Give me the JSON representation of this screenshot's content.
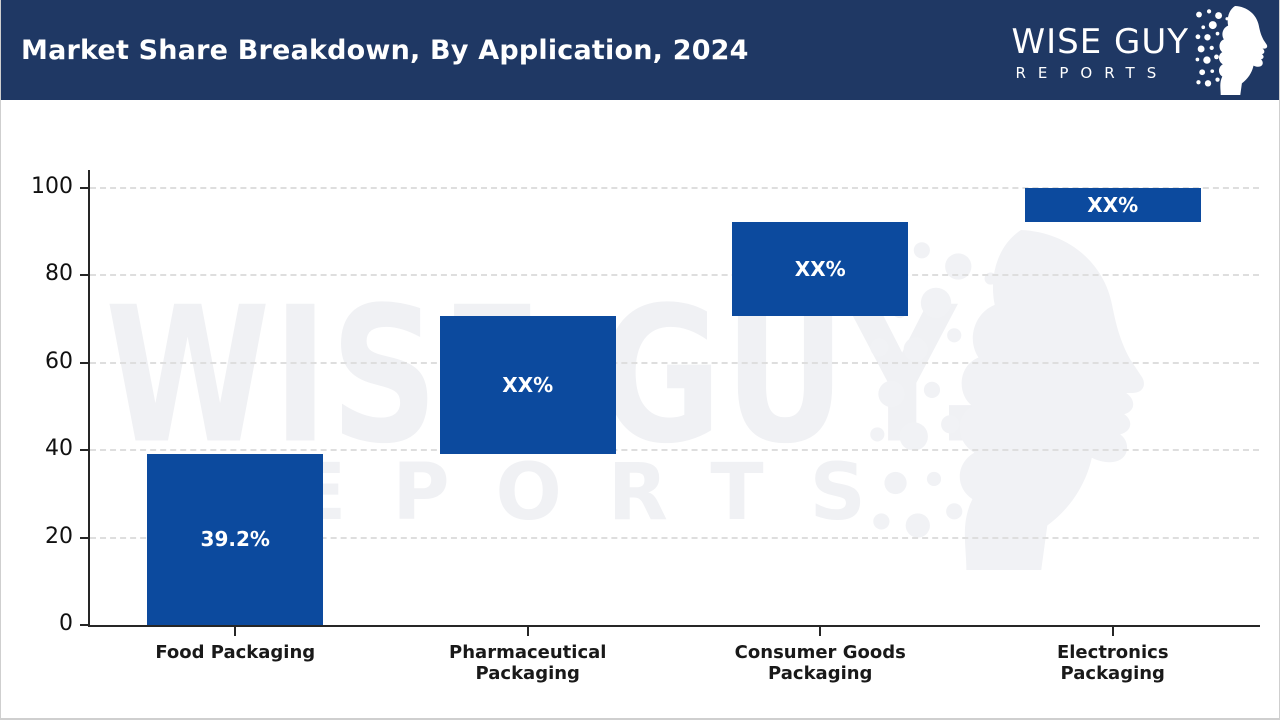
{
  "header": {
    "title": "Market Share Breakdown, By Application, 2024",
    "background": "#1f3864",
    "brand": {
      "name": "WISE GUY",
      "sub": "REPORTS"
    }
  },
  "watermark": {
    "line1": "WISE GUY.",
    "line2": "REPORTS"
  },
  "chart_data": {
    "type": "bar",
    "subtype": "waterfall",
    "title": "Market Share Breakdown, By Application, 2024",
    "categories": [
      "Food Packaging",
      "Pharmaceutical Packaging",
      "Consumer Goods Packaging",
      "Electronics Packaging"
    ],
    "category_lines": [
      [
        "Food Packaging"
      ],
      [
        "Pharmaceutical",
        "Packaging"
      ],
      [
        "Consumer Goods",
        "Packaging"
      ],
      [
        "Electronics",
        "Packaging"
      ]
    ],
    "points": [
      {
        "category": "Food Packaging",
        "start": 0,
        "end": 39.2,
        "label": "39.2%"
      },
      {
        "category": "Pharmaceutical Packaging",
        "start": 39.2,
        "end": 70.8,
        "label": "XX%"
      },
      {
        "category": "Consumer Goods Packaging",
        "start": 70.8,
        "end": 92.3,
        "label": "XX%"
      },
      {
        "category": "Electronics Packaging",
        "start": 92.3,
        "end": 100,
        "label": "XX%"
      }
    ],
    "ylim": [
      0,
      100
    ],
    "yticks": [
      0,
      20,
      40,
      60,
      80,
      100
    ],
    "grid": "horizontal-dashed",
    "bar_color": "#0c4a9e",
    "label_color": "#ffffff",
    "xlabel": "",
    "ylabel": ""
  }
}
